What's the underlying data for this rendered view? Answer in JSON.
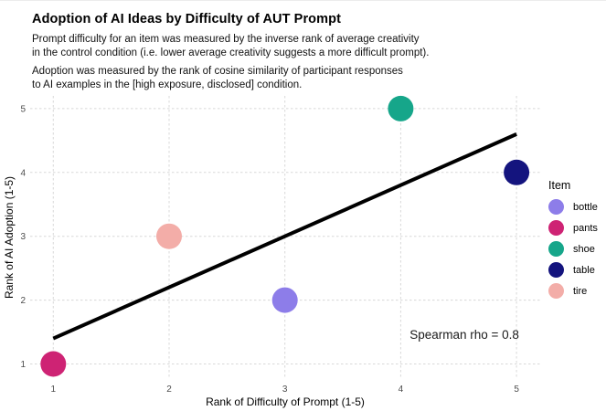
{
  "chart_data": {
    "type": "scatter",
    "title": "Adoption of AI Ideas by Difficulty of AUT Prompt",
    "subtitle_lines": [
      "Prompt difficulty for an item was measured by the inverse rank of average creativity",
      "in the control condition (i.e. lower average creativity suggests a more difficult prompt).",
      "Adoption was measured by the rank of cosine similarity of participant responses",
      "to AI examples in the [high exposure, disclosed] condition."
    ],
    "xlabel": "Rank of Difficulty of Prompt (1-5)",
    "ylabel": "Rank of AI Adoption (1-5)",
    "xticks": [
      1,
      2,
      3,
      4,
      5
    ],
    "yticks": [
      1,
      2,
      3,
      4,
      5
    ],
    "xlim": [
      0.8,
      5.2
    ],
    "ylim": [
      0.8,
      5.2
    ],
    "grid": "major-dashed",
    "points": [
      {
        "item": "bottle",
        "x": 3,
        "y": 2,
        "color": "#8d7de9"
      },
      {
        "item": "pants",
        "x": 1,
        "y": 1,
        "color": "#ce2374"
      },
      {
        "item": "shoe",
        "x": 4,
        "y": 5,
        "color": "#16a68a"
      },
      {
        "item": "table",
        "x": 5,
        "y": 4,
        "color": "#14147e"
      },
      {
        "item": "tire",
        "x": 2,
        "y": 3,
        "color": "#f3ada8"
      }
    ],
    "trendline": {
      "type": "linear",
      "slope": 0.8,
      "intercept": 0.6,
      "x_start": 1,
      "x_end": 5,
      "color": "#000000"
    },
    "annotation": {
      "text": "Spearman rho = 0.8",
      "x": 4.55,
      "y": 1.45
    },
    "legend": {
      "title": "Item",
      "position": "right",
      "items": [
        "bottle",
        "pants",
        "shoe",
        "table",
        "tire"
      ]
    },
    "style_colors": {
      "gridline": "#d8d8d8",
      "tick_label": "#4d4d4d",
      "axis_title": "#000000",
      "annotation_text": "#1a1a1a"
    }
  }
}
